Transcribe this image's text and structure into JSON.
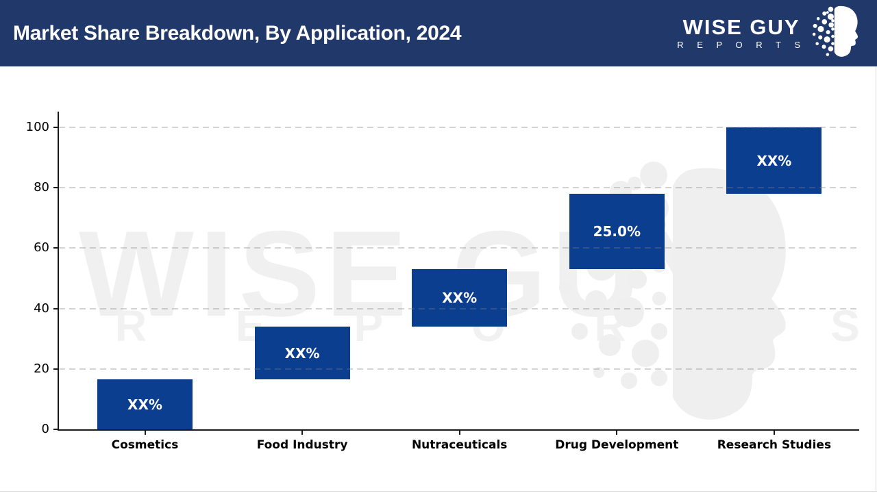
{
  "header": {
    "title": "Market Share Breakdown, By Application, 2024",
    "bg_color": "#21386a",
    "logo": {
      "line1": "WISE GUY",
      "line2": "R E P O R T S"
    }
  },
  "watermark": {
    "line1": "WISE GUY",
    "line2": "R E P O R T S"
  },
  "chart_data": {
    "type": "bar",
    "subtype": "floating-waterfall",
    "title": "Market Share Breakdown, By Application, 2024",
    "categories": [
      "Cosmetics",
      "Food Industry",
      "Nutraceuticals",
      "Drug Development",
      "Research Studies"
    ],
    "segments": [
      {
        "category": "Cosmetics",
        "start": 0,
        "end": 16.5,
        "span": 16.5,
        "label": "XX%"
      },
      {
        "category": "Food Industry",
        "start": 16.5,
        "end": 34,
        "span": 17.5,
        "label": "XX%"
      },
      {
        "category": "Nutraceuticals",
        "start": 34,
        "end": 53,
        "span": 19,
        "label": "XX%"
      },
      {
        "category": "Drug Development",
        "start": 53,
        "end": 78,
        "span": 25,
        "label": "25.0%"
      },
      {
        "category": "Research Studies",
        "start": 78,
        "end": 100,
        "span": 22,
        "label": "XX%"
      }
    ],
    "y_ticks": [
      0,
      20,
      40,
      60,
      80,
      100
    ],
    "ylim": [
      0,
      105.5
    ],
    "xlabel": "",
    "ylabel": "",
    "bar_color": "#0c3e8f",
    "bar_label_color": "#ffffff",
    "grid": {
      "axis": "y",
      "style": "dashed",
      "above_bars": true
    },
    "legend": "none"
  }
}
